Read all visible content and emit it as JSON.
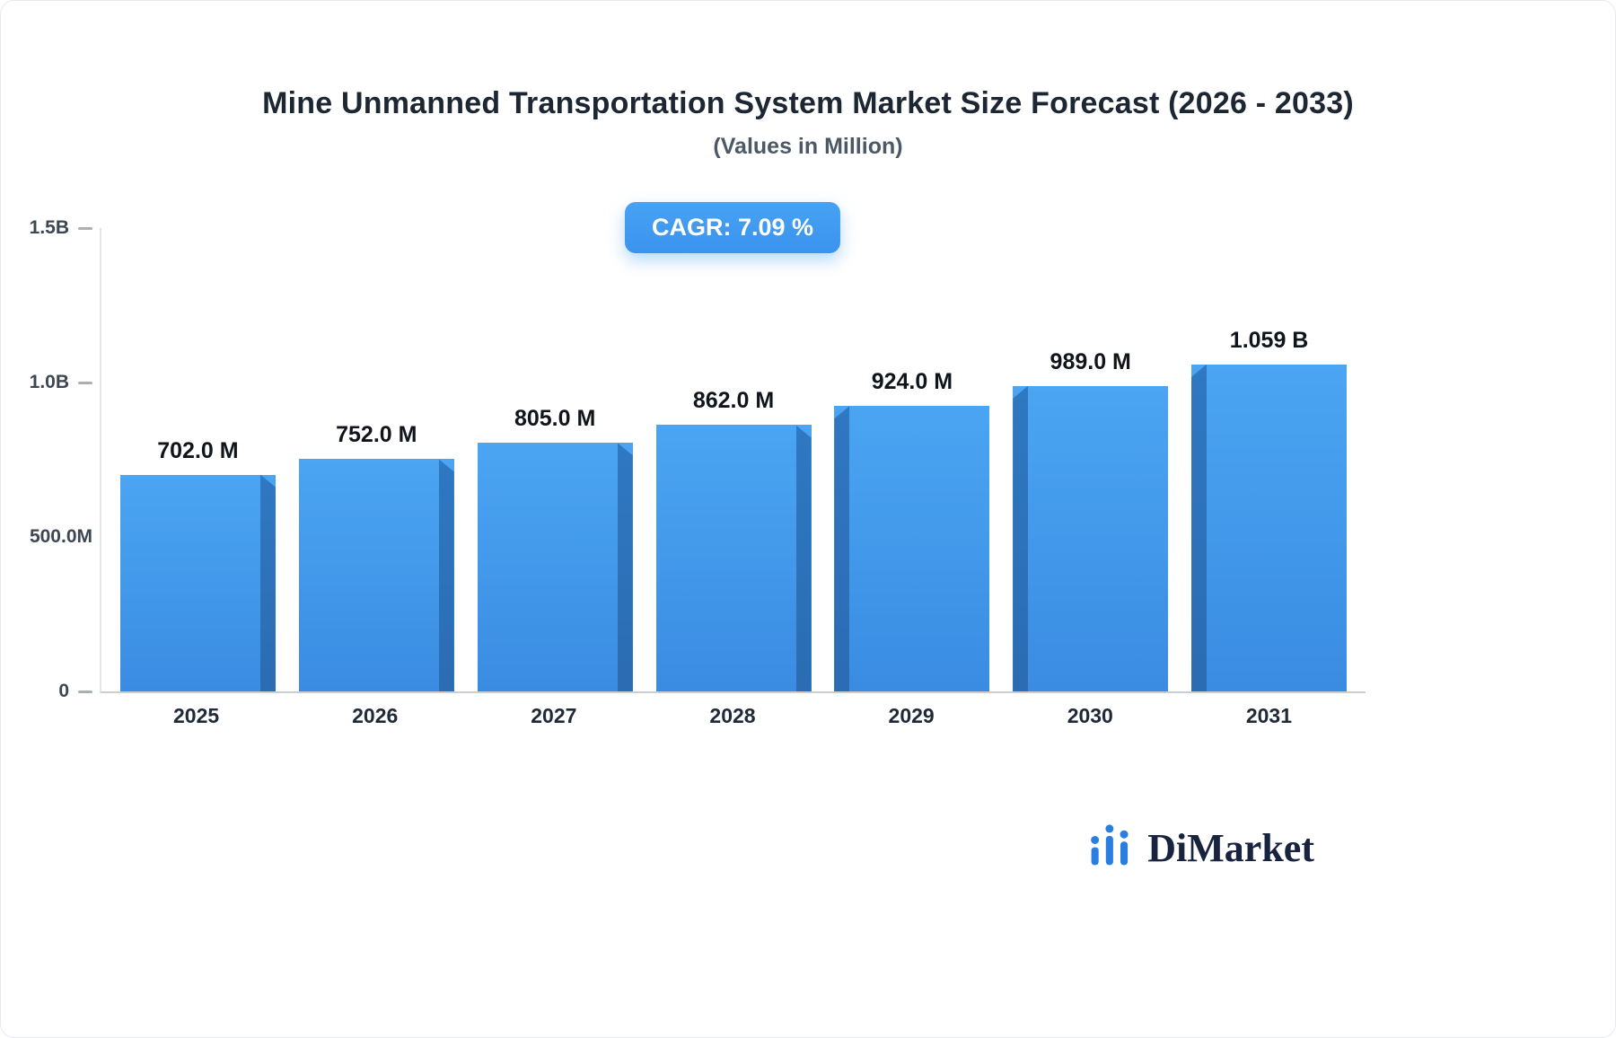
{
  "header": {
    "title": "Mine Unmanned Transportation System Market Size Forecast (2026 - 2033)",
    "subtitle": "(Values in Million)",
    "cagr_label": "CAGR: 7.09 %"
  },
  "chart_data": {
    "type": "bar",
    "title": "Mine Unmanned Transportation System Market Size Forecast (2026 - 2033)",
    "subtitle": "(Values in Million)",
    "unit": "Million",
    "categories": [
      "2025",
      "2026",
      "2027",
      "2028",
      "2029",
      "2030",
      "2031"
    ],
    "values": [
      702,
      752,
      805,
      862,
      924,
      989,
      1059
    ],
    "value_labels": [
      "702.0 M",
      "752.0 M",
      "805.0 M",
      "862.0 M",
      "924.0 M",
      "989.0 M",
      "1.059 B"
    ],
    "xlabel": "",
    "ylabel": "",
    "ylim": [
      0,
      1500
    ],
    "yticks": [
      {
        "value": 1500,
        "label": "1.5B",
        "dash": true
      },
      {
        "value": 1000,
        "label": "1.0B",
        "dash": true
      },
      {
        "value": 500,
        "label": "500.0M",
        "dash": false
      },
      {
        "value": 0,
        "label": "0",
        "dash": true
      }
    ],
    "grid": false,
    "legend": false,
    "bar_color_top": "#4BA5F2",
    "bar_color_bottom": "#3A8CE2",
    "bar_side_color": "#2F78C2"
  },
  "branding": {
    "logo_text": "DiMarket",
    "logo_icon": "bar-chart-icon",
    "logo_color": "#2A7DE1",
    "text_color": "#17233F"
  },
  "colors": {
    "accent": "#3B93EE",
    "accent_light": "#47A2F3",
    "title_color": "#1C2733",
    "axis_text_color": "#3D4752"
  }
}
